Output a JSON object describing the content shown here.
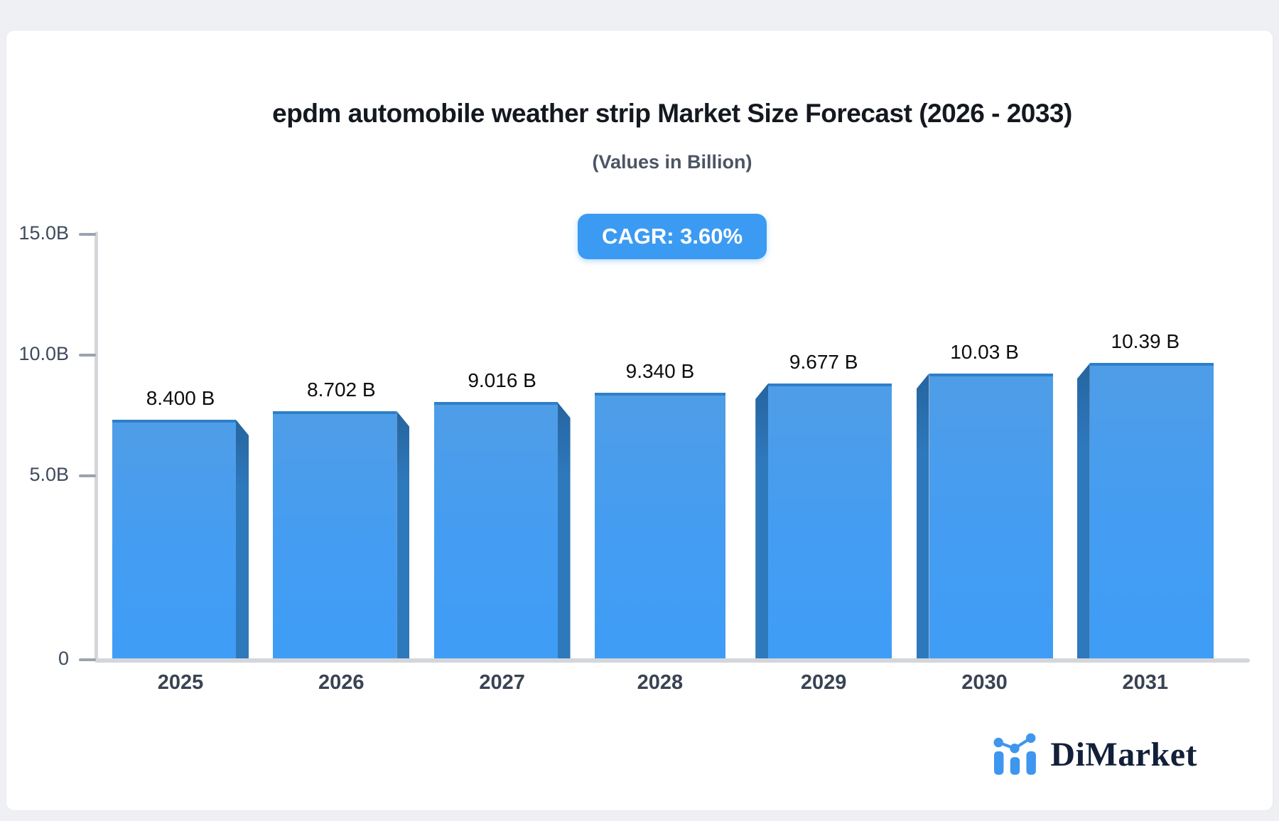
{
  "page": {
    "title": "epdm automobile weather strip Market Size Forecast (2026 - 2033)",
    "subtitle": "(Values in Billion)",
    "cagr_badge": "CAGR: 3.60%"
  },
  "colors": {
    "bar_face": "#449df2",
    "bar_side": "#2e78bc",
    "badge": "#3b9bf2",
    "axis": "#d3d6db",
    "logo_blue": "#3e96ef",
    "logo_navy": "#13203a"
  },
  "chart_data": {
    "type": "bar",
    "title": "epdm automobile weather strip Market Size Forecast (2026 - 2033)",
    "subtitle": "(Values in Billion)",
    "unit": "Billion",
    "categories": [
      "2025",
      "2026",
      "2027",
      "2028",
      "2029",
      "2030",
      "2031"
    ],
    "values": [
      8.4,
      8.702,
      9.016,
      9.34,
      9.677,
      10.03,
      10.39
    ],
    "bar_labels": [
      "8.400 B",
      "8.702 B",
      "9.016 B",
      "9.340 B",
      "9.677 B",
      "10.03 B",
      "10.39 B"
    ],
    "cagr": "3.60%",
    "xlabel": "",
    "ylabel": "",
    "ylim": [
      0,
      15
    ],
    "ytick_labels": [
      "15.0B",
      "10.0B",
      "5.0B",
      "0"
    ],
    "grid": false,
    "legend": false
  },
  "branding": {
    "logo_text": "DiMarket",
    "logo_icon": "bar-chart-icon"
  }
}
